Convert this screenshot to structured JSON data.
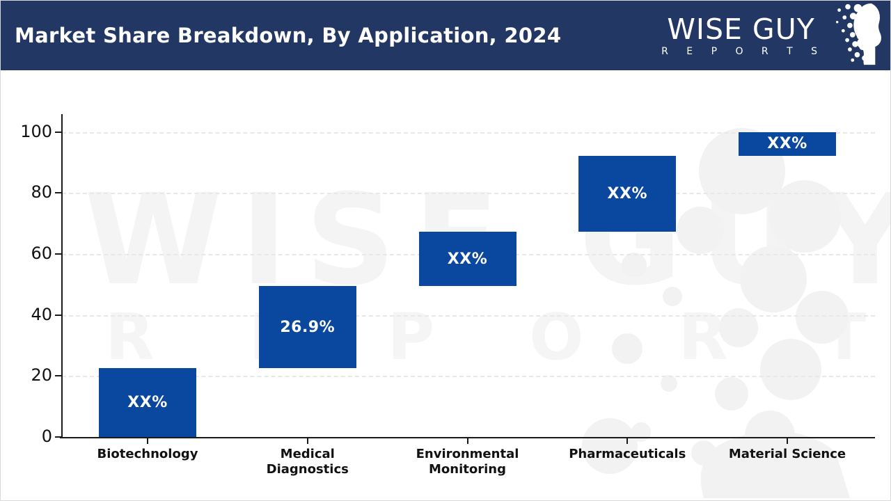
{
  "header": {
    "title": "Market Share Breakdown, By Application, 2024",
    "bg_color": "#223764",
    "logo": {
      "line1": "WISE GUY",
      "line2": "R E P O R T S"
    }
  },
  "watermark": {
    "line1": "WISE GUY",
    "line2": "R E P O R T S"
  },
  "chart_data": {
    "type": "bar",
    "variant": "waterfall",
    "title": "Market Share Breakdown, By Application, 2024",
    "categories": [
      "Biotechnology",
      "Medical Diagnostics",
      "Environmental Monitoring",
      "Pharmaceuticals",
      "Material Science"
    ],
    "tick_lines": [
      [
        "Biotechnology"
      ],
      [
        "Medical",
        "Diagnostics"
      ],
      [
        "Environmental",
        "Monitoring"
      ],
      [
        "Pharmaceuticals"
      ],
      [
        "Material Science"
      ]
    ],
    "segments": [
      {
        "category": "Biotechnology",
        "start": 0,
        "end": 22.5,
        "height": 22.5,
        "value_label": "XX%"
      },
      {
        "category": "Medical Diagnostics",
        "start": 22.5,
        "end": 49.4,
        "height": 26.9,
        "value_label": "26.9%"
      },
      {
        "category": "Environmental Monitoring",
        "start": 49.4,
        "end": 67.3,
        "height": 17.9,
        "value_label": "XX%"
      },
      {
        "category": "Pharmaceuticals",
        "start": 67.3,
        "end": 92.1,
        "height": 24.8,
        "value_label": "XX%"
      },
      {
        "category": "Material Science",
        "start": 92.1,
        "end": 100,
        "height": 7.9,
        "value_label": "XX%"
      }
    ],
    "yticks": [
      0,
      20,
      40,
      60,
      80,
      100
    ],
    "ylim": [
      0,
      105
    ],
    "xlabel": "",
    "ylabel": "",
    "grid": "horizontal dashed",
    "legend": "none",
    "bar_color": "#0a479e",
    "bar_label_color": "#ffffff"
  }
}
